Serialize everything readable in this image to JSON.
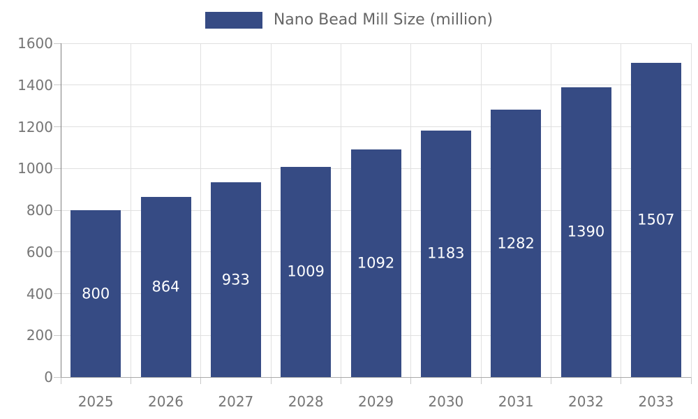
{
  "chart_data": {
    "type": "bar",
    "title": "Nano Bead Mill Size (million)",
    "categories": [
      "2025",
      "2026",
      "2027",
      "2028",
      "2029",
      "2030",
      "2031",
      "2032",
      "2033"
    ],
    "values": [
      800,
      864,
      933,
      1009,
      1092,
      1183,
      1282,
      1390,
      1507
    ],
    "series": [
      {
        "name": "Nano Bead Mill Size (million)",
        "values": [
          800,
          864,
          933,
          1009,
          1092,
          1183,
          1282,
          1390,
          1507
        ]
      }
    ],
    "xlabel": "",
    "ylabel": "",
    "ylim": [
      0,
      1600
    ],
    "ytick_step": 200,
    "ytick_labels": [
      "0",
      "200",
      "400",
      "600",
      "800",
      "1000",
      "1200",
      "1400",
      "1600"
    ],
    "grid": true,
    "legend_position": "top",
    "value_labels": "inside-center",
    "colors": {
      "bar": "#364b84",
      "bar_value_label": "#ffffff",
      "axis_tick_text": "#757575",
      "legend_text": "#666666",
      "gridline": "#e0e0e0",
      "y_axis_line": "#808080",
      "x_axis_line": "#a9a9a9",
      "tick_mark": "#c8c8c8",
      "background": "#ffffff"
    }
  }
}
